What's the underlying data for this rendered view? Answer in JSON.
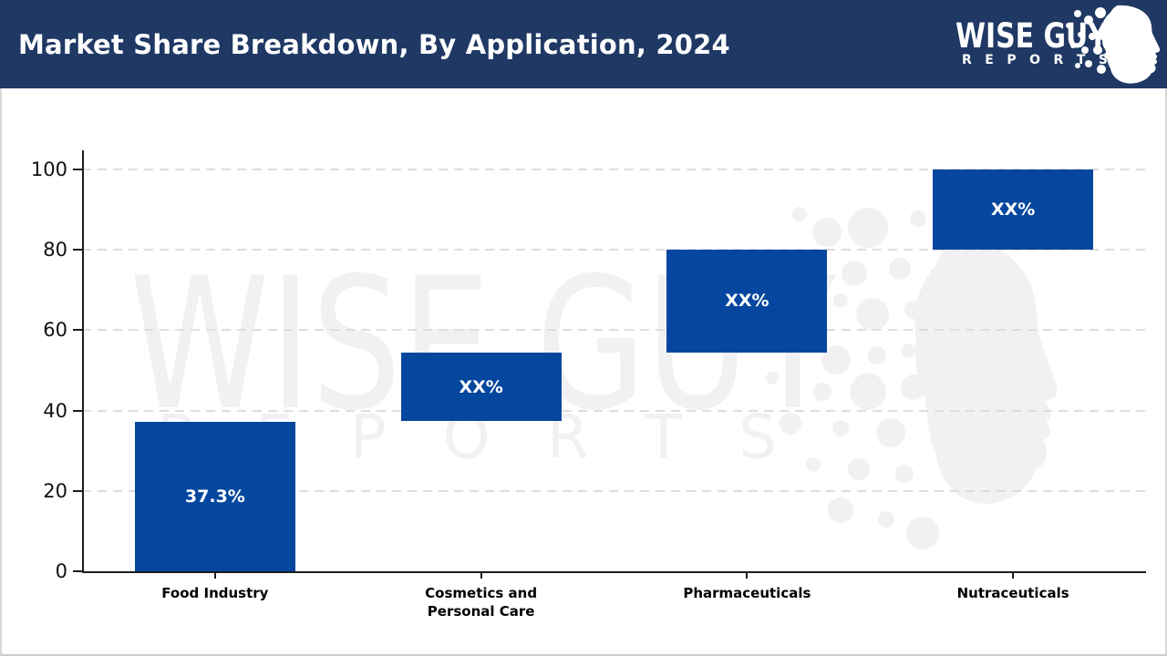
{
  "header": {
    "bg_color": "#1f3864",
    "title": "Market Share Breakdown, By Application, 2024",
    "logo": {
      "line1": "WISE GUY",
      "line2": "R E P O R T S"
    }
  },
  "watermark": {
    "line1": "WISE GUY",
    "line2": "R E P O R T S"
  },
  "chart_data": {
    "type": "bar",
    "subtype": "waterfall",
    "title": "Market Share Breakdown, By Application, 2024",
    "xlabel": "",
    "ylabel": "",
    "categories": [
      "Food Industry",
      "Cosmetics and\nPersonal Care",
      "Pharmaceuticals",
      "Nutraceuticals"
    ],
    "bars": [
      {
        "category": "Food Industry",
        "start": 0,
        "end": 37.3,
        "label": "37.3%"
      },
      {
        "category": "Cosmetics and\nPersonal Care",
        "start": 37.3,
        "end": 54.5,
        "label": "XX%"
      },
      {
        "category": "Pharmaceuticals",
        "start": 54.5,
        "end": 80,
        "label": "XX%"
      },
      {
        "category": "Nutraceuticals",
        "start": 80,
        "end": 100,
        "label": "XX%"
      }
    ],
    "yticks": [
      0,
      20,
      40,
      60,
      80,
      100
    ],
    "ylim": [
      0,
      105
    ],
    "grid": "horizontal-dashed",
    "legend": "none",
    "bar_color": "#05479e",
    "bar_label_color": "#ffffff",
    "axis_color": "#1c1c1c",
    "gridline_color": "#dddddd",
    "watermark_color": "#f1f1f4"
  }
}
